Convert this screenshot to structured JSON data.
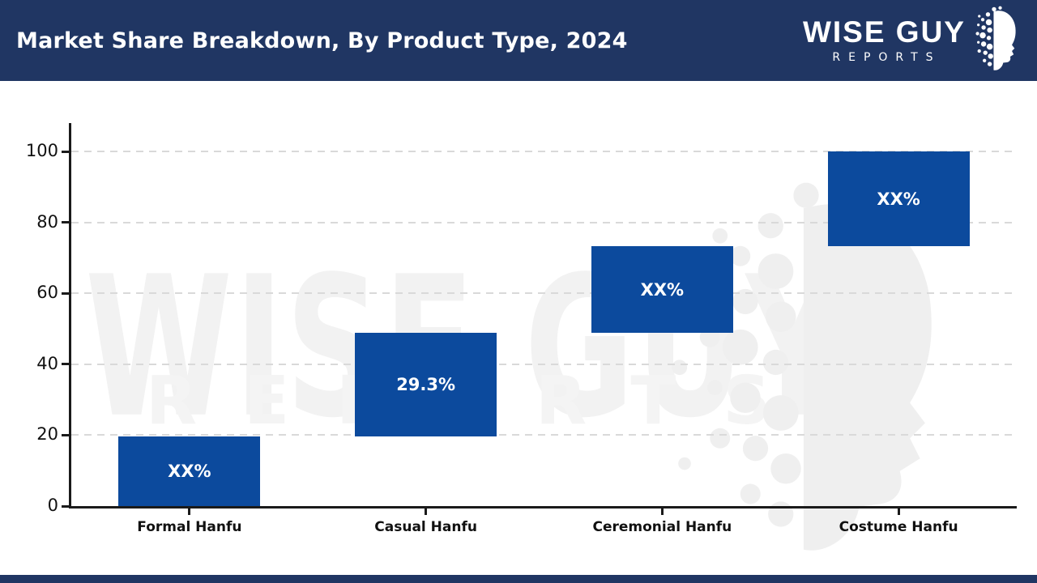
{
  "header": {
    "title": "Market Share Breakdown, By Product Type, 2024",
    "logo": {
      "wordmark": "WISE GUY",
      "subtext": "REPORTS"
    }
  },
  "watermark": {
    "line1": "WISE GUY",
    "line2": "REPORTS"
  },
  "icons": {
    "brand_head": "wiseguy-head-icon",
    "watermark_head": "watermark-head-icon"
  },
  "colors": {
    "header_bg": "#203663",
    "footer_bg": "#203663",
    "bar": "#0c4a9d",
    "grid": "#d9d9d9",
    "axis": "#1a1a1a",
    "bar_label": "#ffffff",
    "watermark": "#f2f2f2"
  },
  "chart_data": {
    "type": "bar",
    "subtype": "waterfall-floating-segments",
    "title": "Market Share Breakdown, By Product Type, 2024",
    "categories": [
      "Formal Hanfu",
      "Casual Hanfu",
      "Ceremonial Hanfu",
      "Costume Hanfu"
    ],
    "segments": [
      {
        "category": "Formal Hanfu",
        "start": 0,
        "end": 19.6,
        "label": "XX%"
      },
      {
        "category": "Casual Hanfu",
        "start": 19.6,
        "end": 48.9,
        "label": "29.3%"
      },
      {
        "category": "Ceremonial Hanfu",
        "start": 48.9,
        "end": 73.2,
        "label": "XX%"
      },
      {
        "category": "Costume Hanfu",
        "start": 73.2,
        "end": 100,
        "label": "XX%"
      }
    ],
    "yticks": [
      0,
      20,
      40,
      60,
      80,
      100
    ],
    "ylim": [
      0,
      108
    ],
    "xlabel": "",
    "ylabel": "",
    "grid": "horizontal-dashed",
    "legend": "none",
    "bar_width_frac": 0.6
  }
}
